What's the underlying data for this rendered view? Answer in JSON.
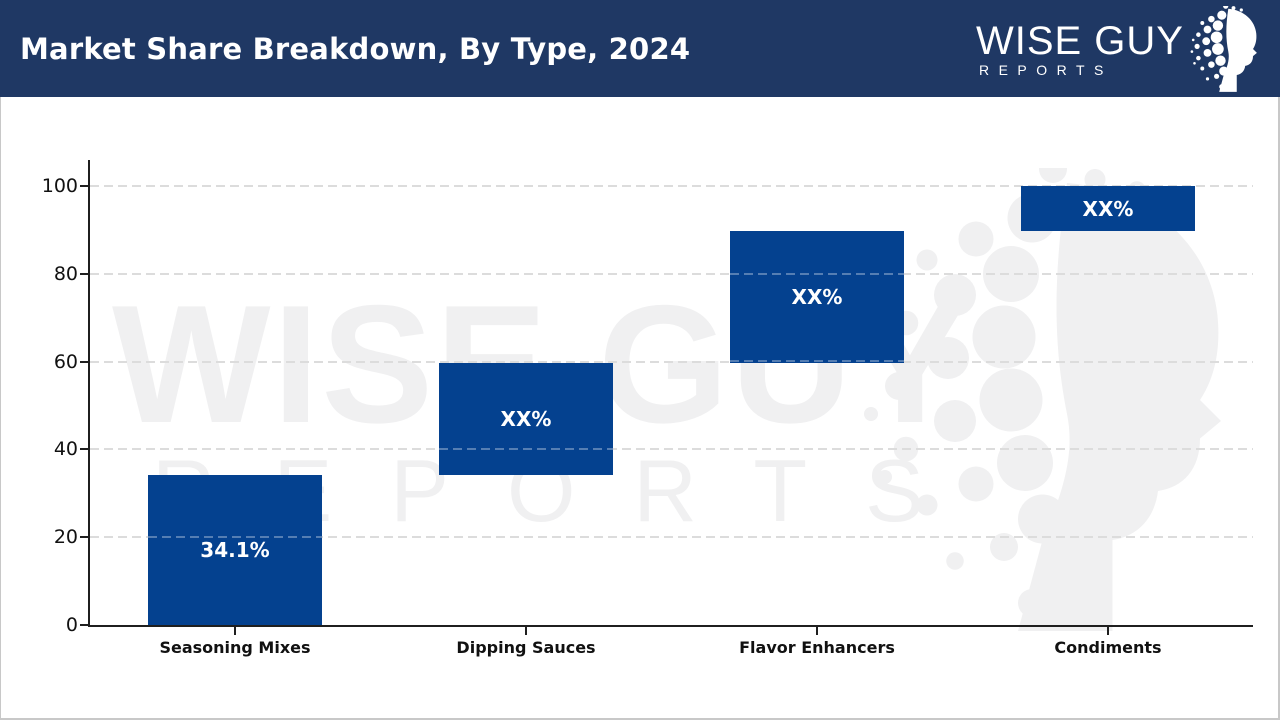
{
  "header": {
    "title": "Market Share Breakdown, By Type, 2024",
    "logo": {
      "line1": "WISE GUY",
      "line2": "REPORTS"
    }
  },
  "watermark": {
    "line1": "WISE GUY",
    "line2": "REPORTS"
  },
  "chart_data": {
    "type": "bar",
    "subtype": "waterfall",
    "title": "Market Share Breakdown, By Type, 2024",
    "categories": [
      "Seasoning Mixes",
      "Dipping Sauces",
      "Flavor Enhancers",
      "Condiments"
    ],
    "segments": [
      {
        "category": "Seasoning Mixes",
        "start": 0,
        "end": 34.1,
        "label": "34.1%"
      },
      {
        "category": "Dipping Sauces",
        "start": 34.1,
        "end": 59.7,
        "label": "XX%"
      },
      {
        "category": "Flavor Enhancers",
        "start": 59.7,
        "end": 89.7,
        "label": "XX%"
      },
      {
        "category": "Condiments",
        "start": 89.7,
        "end": 100,
        "label": "XX%"
      }
    ],
    "yticks": [
      0,
      20,
      40,
      60,
      80,
      100
    ],
    "ylim": [
      0,
      100
    ],
    "xlabel": "",
    "ylabel": "",
    "grid": "horizontal-dashed",
    "legend": "none"
  },
  "colors": {
    "header_bg": "#1f3864",
    "bar": "#04418f",
    "bar_label": "#ffffff",
    "axis": "#1f1f1f",
    "tick_label": "#111111",
    "gridline": "#dcdcdc",
    "watermark": "#f0f0f1",
    "border": "#c8c8c8",
    "background": "#ffffff"
  }
}
